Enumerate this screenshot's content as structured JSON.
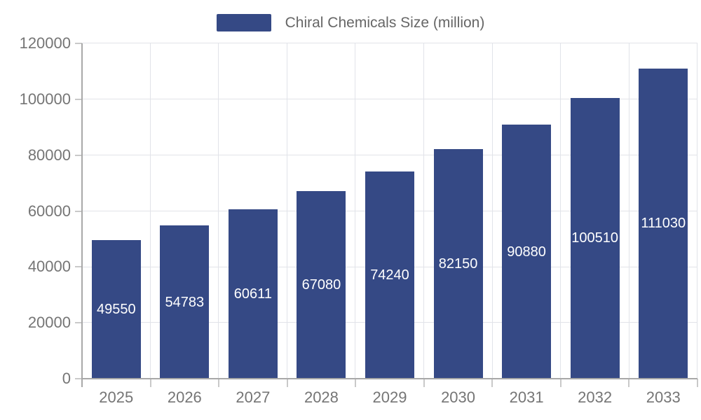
{
  "legend": {
    "label": "Chiral Chemicals Size (million)"
  },
  "chart_data": {
    "type": "bar",
    "title": "Chiral Chemicals Size (million)",
    "categories": [
      "2025",
      "2026",
      "2027",
      "2028",
      "2029",
      "2030",
      "2031",
      "2032",
      "2033"
    ],
    "series": [
      {
        "name": "Chiral Chemicals Size (million)",
        "values": [
          49550,
          54783,
          60611,
          67080,
          74240,
          82150,
          90880,
          100510,
          111030
        ]
      }
    ],
    "value_labels": [
      "49550",
      "54783",
      "60611",
      "67080",
      "74240",
      "82150",
      "90880",
      "100510",
      "111030"
    ],
    "xlabel": "",
    "ylabel": "",
    "ylim": [
      0,
      120000
    ],
    "yticks": [
      0,
      20000,
      40000,
      60000,
      80000,
      100000,
      120000
    ],
    "ytick_labels": [
      "0",
      "20000",
      "40000",
      "60000",
      "80000",
      "100000",
      "120000"
    ],
    "grid": true,
    "legend_position": "top-center",
    "colors": {
      "bar": "#354985",
      "value_label": "#ffffff",
      "axis_text": "#757575",
      "legend_text": "#666666",
      "grid_line": "#e1e3e9",
      "axis_line": "#a8a8a8",
      "tick_line": "#c9c9c9",
      "background": "#ffffff"
    }
  }
}
